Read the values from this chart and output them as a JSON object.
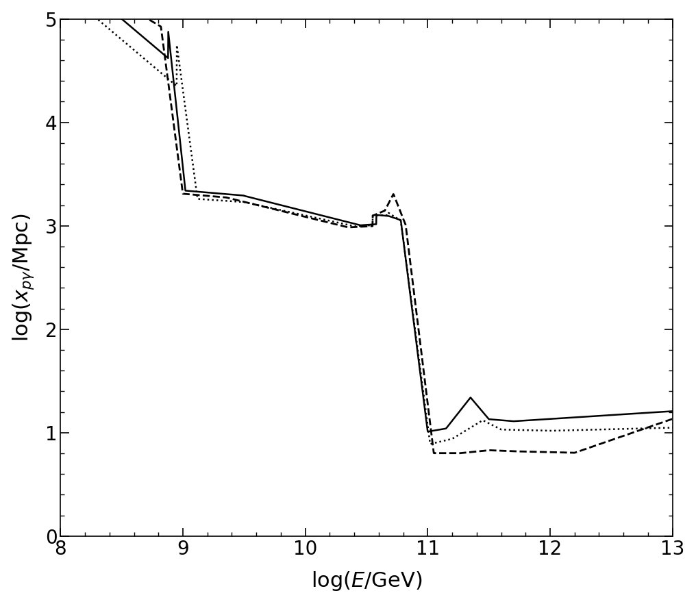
{
  "title": "",
  "xlabel": "log(E/GeV)",
  "ylabel": "log(x_{p\\gamma}/Mpc)",
  "xlim": [
    8,
    13
  ],
  "ylim": [
    0,
    5
  ],
  "xticks": [
    8,
    9,
    10,
    11,
    12,
    13
  ],
  "yticks": [
    0,
    1,
    2,
    3,
    4,
    5
  ],
  "background_color": "#ffffff",
  "line_color": "#000000",
  "linewidth_solid": 1.8,
  "linewidth_dashed": 2.0,
  "linewidth_dotted": 1.8
}
